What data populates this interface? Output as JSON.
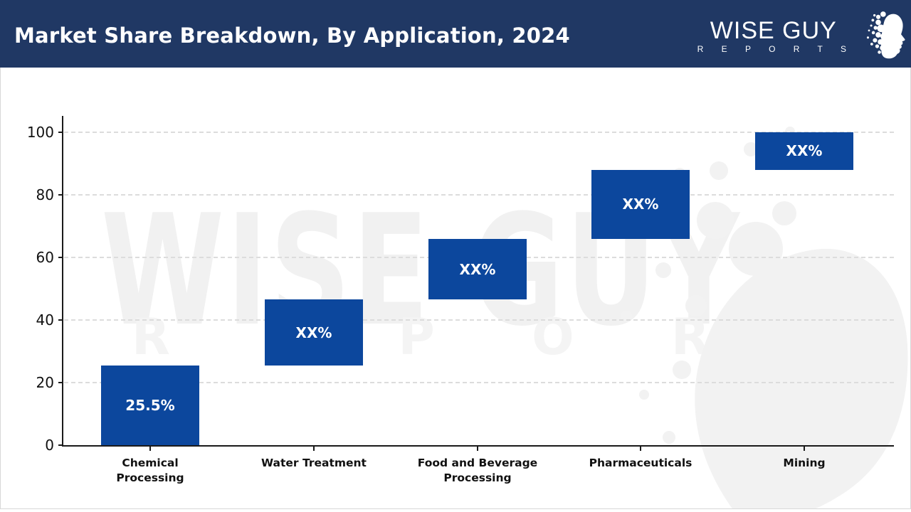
{
  "header": {
    "title": "Market Share Breakdown, By Application, 2024",
    "logo": {
      "wordmark": "WISE GUY",
      "subtext": "REPORTS"
    }
  },
  "watermark": {
    "wordmark": "WISE GUY",
    "subtext": "REPORTS"
  },
  "colors": {
    "header_background": "#203864",
    "bar_fill": "#0c479d",
    "bar_label_text": "#ffffff",
    "gridline": "#dcdcdc",
    "axis": "#1a1a1a",
    "tick_text": "#111111",
    "watermark": "#f1f1f1"
  },
  "icons": {
    "logo_face": "face-profile-dots-icon",
    "watermark_face": "face-profile-dots-watermark"
  },
  "chart_data": {
    "type": "bar",
    "subtype": "waterfall",
    "title": "Market Share Breakdown, By Application, 2024",
    "xlabel": "",
    "ylabel": "",
    "ylim": [
      0,
      105
    ],
    "y_ticks": [
      0,
      20,
      40,
      60,
      80,
      100
    ],
    "grid": "horizontal dashed",
    "legend": "none",
    "categories": [
      "Chemical Processing",
      "Water Treatment",
      "Food and Beverage Processing",
      "Pharmaceuticals",
      "Mining"
    ],
    "segments": [
      {
        "category": "Chemical Processing",
        "category_lines": [
          "Chemical",
          "Processing"
        ],
        "start": 0,
        "end": 25.5,
        "label": "25.5%"
      },
      {
        "category": "Water Treatment",
        "category_lines": [
          "Water Treatment"
        ],
        "start": 25.5,
        "end": 46.5,
        "label": "XX%"
      },
      {
        "category": "Food and Beverage Processing",
        "category_lines": [
          "Food and Beverage",
          "Processing"
        ],
        "start": 46.5,
        "end": 66,
        "label": "XX%"
      },
      {
        "category": "Pharmaceuticals",
        "category_lines": [
          "Pharmaceuticals"
        ],
        "start": 66,
        "end": 88,
        "label": "XX%"
      },
      {
        "category": "Mining",
        "category_lines": [
          "Mining"
        ],
        "start": 88,
        "end": 100,
        "label": "XX%"
      }
    ]
  }
}
